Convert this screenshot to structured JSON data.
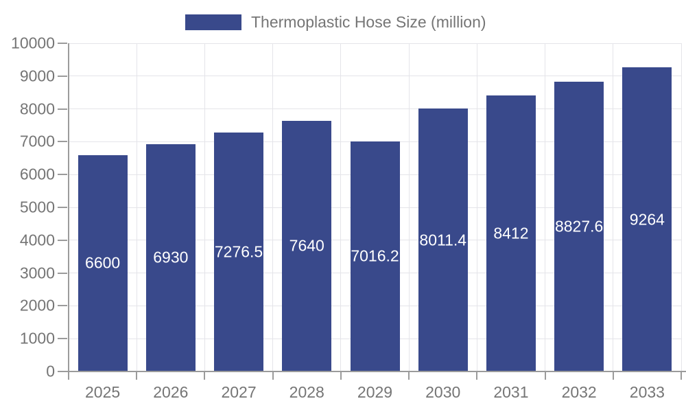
{
  "colors": {
    "bar": "#39498B",
    "grid": "#e4e4e9",
    "axis": "#9b9b9b",
    "tick": "#9b9b9b",
    "text": "#757575",
    "value_label": "#ffffff",
    "background": "#ffffff"
  },
  "chart_data": {
    "type": "bar",
    "title": "Thermoplastic Hose Size (million)",
    "legend": [
      "Thermoplastic Hose Size (million)"
    ],
    "legend_position": "top",
    "categories": [
      "2025",
      "2026",
      "2027",
      "2028",
      "2029",
      "2030",
      "2031",
      "2032",
      "2033"
    ],
    "values": [
      6600,
      6930,
      7276.5,
      7640,
      7016.2,
      8011.4,
      8412,
      8827.6,
      9264
    ],
    "xlabel": "",
    "ylabel": "",
    "ylim": [
      0,
      10000
    ],
    "yticks": [
      0,
      1000,
      2000,
      3000,
      4000,
      5000,
      6000,
      7000,
      8000,
      9000,
      10000
    ],
    "grid": true,
    "value_labels_position": "inside-center"
  }
}
